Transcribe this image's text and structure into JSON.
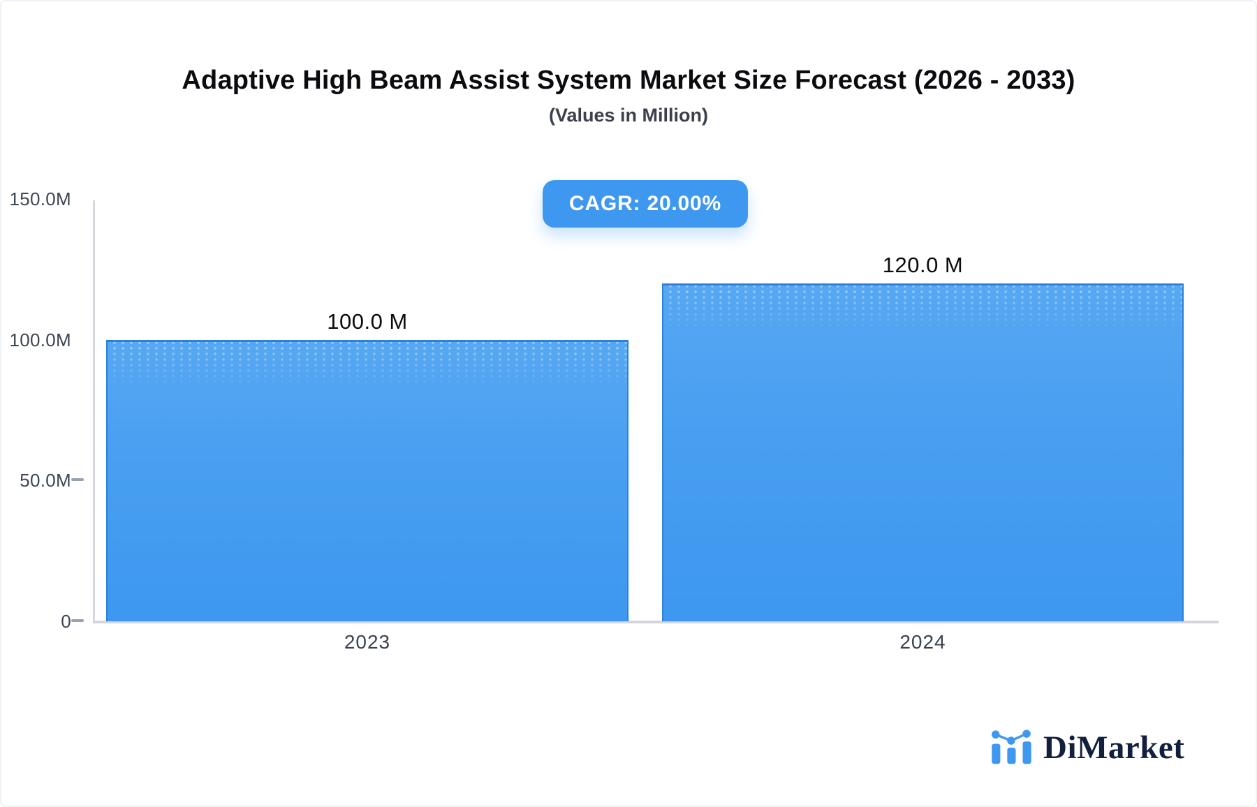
{
  "header": {
    "title": "Adaptive High Beam Assist System Market Size Forecast (2026 - 2033)",
    "subtitle": "(Values in Million)",
    "cagr_label": "CAGR: 20.00%"
  },
  "chart_data": {
    "type": "bar",
    "categories": [
      "2023",
      "2024"
    ],
    "values": [
      100,
      120
    ],
    "value_labels": [
      "100.0 M",
      "120.0 M"
    ],
    "unit": "Million",
    "ylim": [
      0,
      150
    ],
    "y_ticks": [
      {
        "label": "150.0M",
        "value": 150,
        "tick": false
      },
      {
        "label": "100.0M",
        "value": 100,
        "tick": false
      },
      {
        "label": "50.0M",
        "value": 50,
        "tick": true
      },
      {
        "label": "0",
        "value": 0,
        "tick": true
      }
    ],
    "grid": false,
    "legend": false,
    "title": "Adaptive High Beam Assist System Market Size Forecast (2026 - 2033)",
    "subtitle": "(Values in Million)"
  },
  "colors": {
    "accent": "#3f98f0",
    "bar_gradient_top": "#57a8f2",
    "bar_gradient_bottom": "#3e97f0",
    "bar_edge": "#2d81da",
    "axis_line": "#d3d6dc",
    "logo_navy": "#121f3d"
  },
  "logo": {
    "text": "DiMarket",
    "icon": "mini-bar-chart-with-trend-dots"
  }
}
